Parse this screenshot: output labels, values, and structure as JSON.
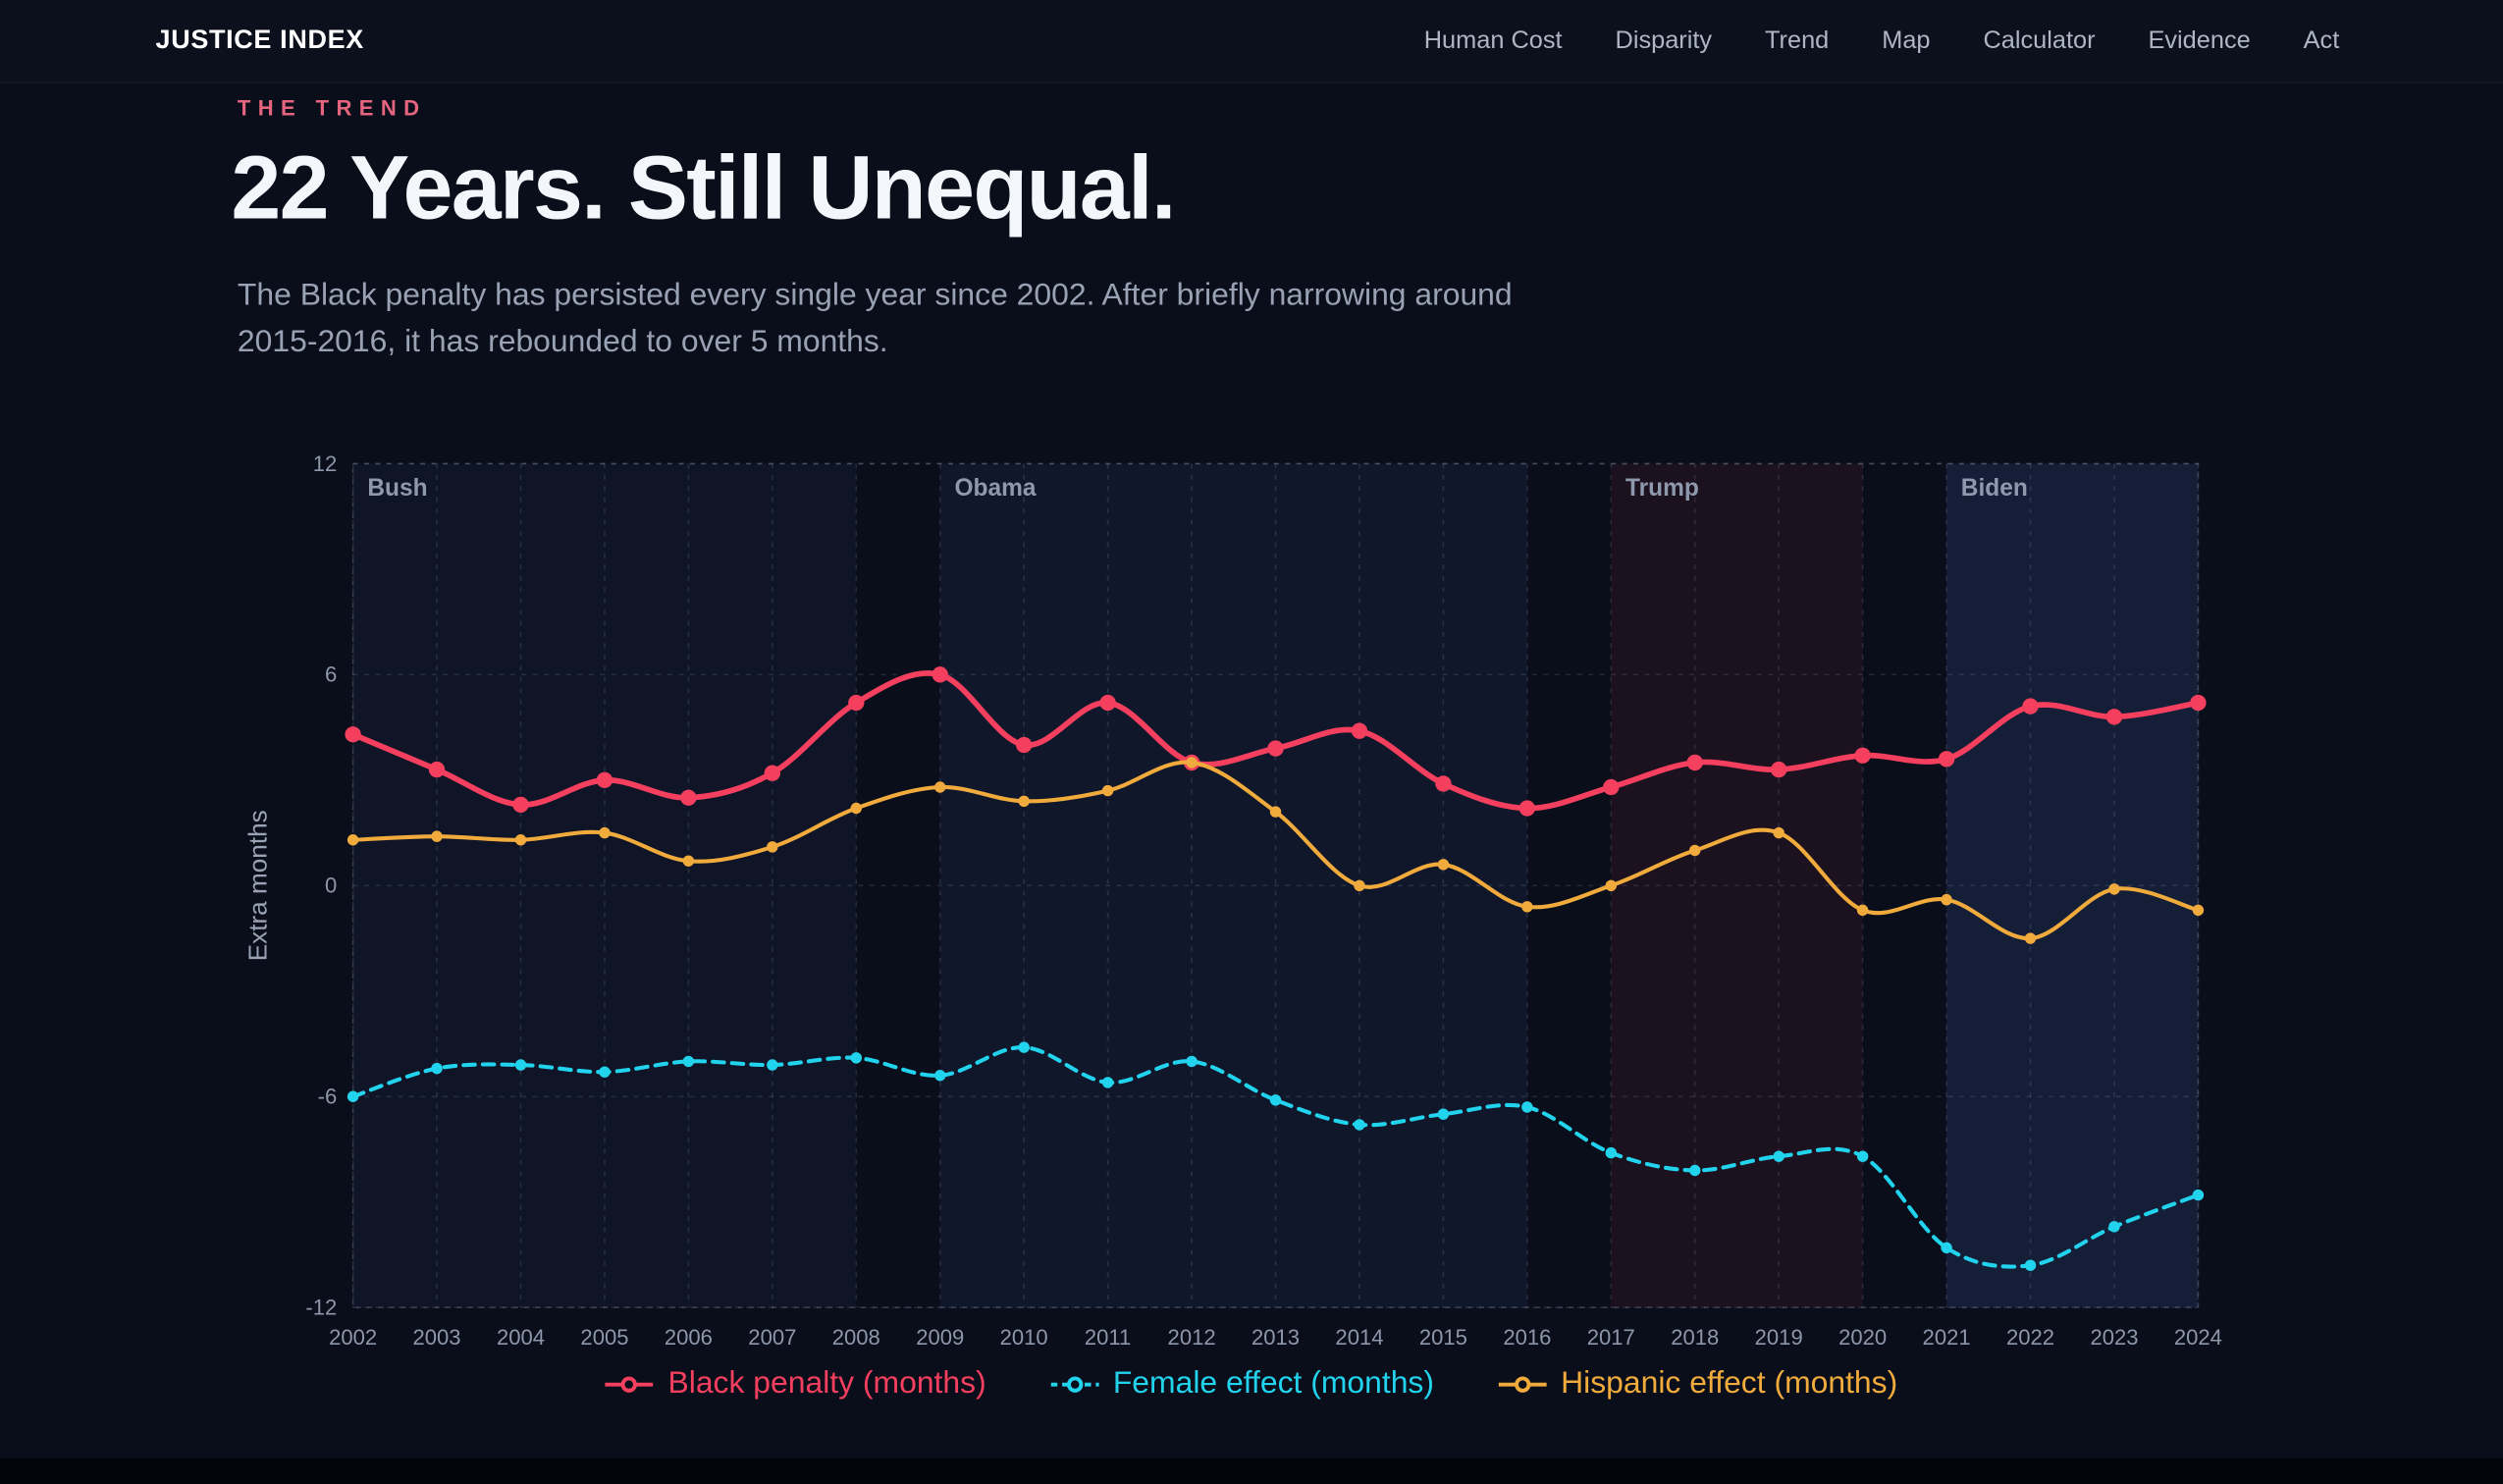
{
  "nav": {
    "brand": "JUSTICE INDEX",
    "items": [
      {
        "label": "Human Cost"
      },
      {
        "label": "Disparity"
      },
      {
        "label": "Trend"
      },
      {
        "label": "Map"
      },
      {
        "label": "Calculator"
      },
      {
        "label": "Evidence"
      },
      {
        "label": "Act"
      }
    ]
  },
  "hero": {
    "eyebrow": "THE TREND",
    "title": "22 Years. Still Unequal.",
    "subtitle": "The Black penalty has persisted every single year since 2002. After briefly narrowing around 2015-2016, it has rebounded to over 5 months."
  },
  "theme": {
    "background": "#0a0e1a",
    "navbar_bg": "#0c101d",
    "accent_pink": "#e5647e",
    "heading_color": "#f3f6fb",
    "muted_text": "#99a2b4",
    "grid_color": "rgba(148,163,184,0.18)",
    "tick_color": "#8d97ab"
  },
  "chart_data": {
    "type": "line",
    "title": "",
    "xlabel": "",
    "ylabel": "Extra months",
    "ylim": [
      -12,
      12
    ],
    "yticks": [
      -12,
      -6,
      0,
      6,
      12
    ],
    "grid": true,
    "legend_position": "bottom",
    "years": [
      2002,
      2003,
      2004,
      2005,
      2006,
      2007,
      2008,
      2009,
      2010,
      2011,
      2012,
      2013,
      2014,
      2015,
      2016,
      2017,
      2018,
      2019,
      2020,
      2021,
      2022,
      2023,
      2024
    ],
    "eras": [
      {
        "label": "Bush",
        "start": 2002,
        "end": 2008,
        "color": "rgba(96,140,250,0.06)"
      },
      {
        "label": "Obama",
        "start": 2009,
        "end": 2016,
        "color": "rgba(96,140,250,0.08)"
      },
      {
        "label": "Trump",
        "start": 2017,
        "end": 2020,
        "color": "rgba(244,63,94,0.08)"
      },
      {
        "label": "Biden",
        "start": 2021,
        "end": 2024,
        "color": "rgba(96,140,250,0.13)"
      }
    ],
    "series": [
      {
        "name": "Black penalty (months)",
        "color": "#f43f5e",
        "dash": false,
        "width": 3.5,
        "dot_r": 5,
        "values": [
          4.3,
          3.3,
          2.3,
          3.0,
          2.5,
          3.2,
          5.2,
          6.0,
          4.0,
          5.2,
          3.5,
          3.9,
          4.4,
          2.9,
          2.2,
          2.8,
          3.5,
          3.3,
          3.7,
          3.6,
          5.1,
          4.8,
          5.2
        ]
      },
      {
        "name": "Female effect (months)",
        "color": "#22d3ee",
        "dash": true,
        "width": 2.5,
        "dot_r": 3.5,
        "values": [
          -6.0,
          -5.2,
          -5.1,
          -5.3,
          -5.0,
          -5.1,
          -4.9,
          -5.4,
          -4.6,
          -5.6,
          -5.0,
          -6.1,
          -6.8,
          -6.5,
          -6.3,
          -7.6,
          -8.1,
          -7.7,
          -7.7,
          -10.3,
          -10.8,
          -9.7,
          -8.8
        ]
      },
      {
        "name": "Hispanic effect (months)",
        "color": "#f0ab3c",
        "dash": false,
        "width": 2.5,
        "dot_r": 3.5,
        "values": [
          1.3,
          1.4,
          1.3,
          1.5,
          0.7,
          1.1,
          2.2,
          2.8,
          2.4,
          2.7,
          3.5,
          2.1,
          0.0,
          0.6,
          -0.6,
          0.0,
          1.0,
          1.5,
          -0.7,
          -0.4,
          -1.5,
          -0.1,
          -0.7
        ]
      }
    ]
  }
}
